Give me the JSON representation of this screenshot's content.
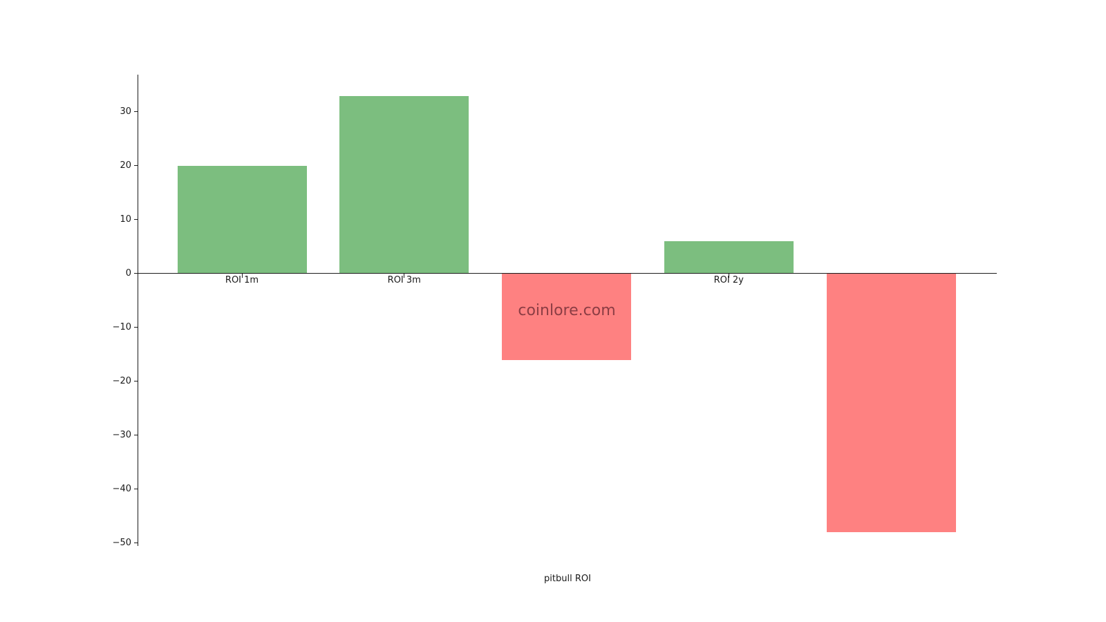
{
  "chart_data": {
    "type": "bar",
    "title": "",
    "xlabel": "pitbull ROI",
    "ylabel": "",
    "watermark": "coinlore.com",
    "categories": [
      "ROI 1m",
      "ROI 3m",
      "",
      "ROI 2y",
      ""
    ],
    "values": [
      20,
      33,
      -16,
      6,
      -48
    ],
    "y_ticks": [
      30,
      20,
      10,
      0,
      -10,
      -20,
      -30,
      -40,
      -50
    ],
    "ylim": [
      -50.5,
      37
    ],
    "grid": false,
    "legend": "none",
    "colors": {
      "positive": "#7cbe7f",
      "negative": "#fe8181",
      "axis": "#1a1a1a",
      "tick_text": "#1a1a1a",
      "watermark": "#8b3d44",
      "background": "#ffffff"
    }
  }
}
